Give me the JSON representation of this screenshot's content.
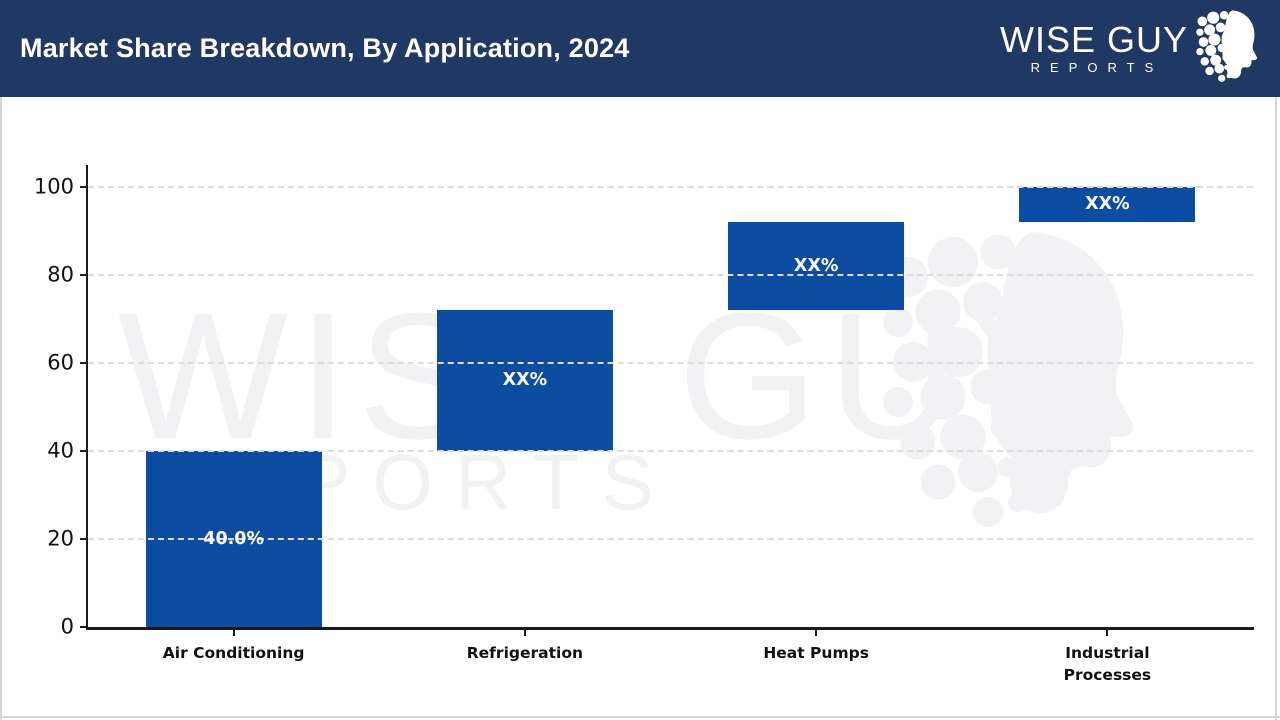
{
  "header": {
    "title": "Market Share Breakdown, By Application, 2024",
    "logo": {
      "line1": "WISE GUY",
      "line2": "REPORTS"
    }
  },
  "watermark": {
    "line1": "WISE GUY",
    "line2": "REPORTS"
  },
  "icons": {
    "logo_head": "wise-guy-head-icon",
    "watermark_head": "wise-guy-head-icon"
  },
  "colors": {
    "header_bg": "#1f3864",
    "bar": "#0d4da1",
    "bar_label": "#ffffff",
    "grid": "#dcdcdc",
    "axis": "#1a1a1a",
    "watermark": "#f2f2f4",
    "border": "#d4d4d4"
  },
  "chart_data": {
    "type": "bar",
    "variant": "waterfall",
    "title": "Market Share Breakdown, By Application, 2024",
    "categories": [
      "Air Conditioning",
      "Refrigeration",
      "Heat Pumps",
      "Industrial Processes"
    ],
    "tick_labels": [
      "Air Conditioning",
      "Refrigeration",
      "Heat Pumps",
      "Industrial\nProcesses"
    ],
    "segments": [
      {
        "label": "Air Conditioning",
        "start": 0,
        "end": 40,
        "value": 40,
        "value_label": "40.0%"
      },
      {
        "label": "Refrigeration",
        "start": 40,
        "end": 72,
        "value": 32,
        "value_label": "XX%"
      },
      {
        "label": "Heat Pumps",
        "start": 72,
        "end": 92,
        "value": 20,
        "value_label": "XX%"
      },
      {
        "label": "Industrial Processes",
        "start": 92,
        "end": 100,
        "value": 8,
        "value_label": "XX%"
      }
    ],
    "ylim": [
      0,
      100
    ],
    "yticks": [
      0,
      20,
      40,
      60,
      80,
      100
    ],
    "xlabel": "",
    "ylabel": "",
    "grid": "horizontal dashed, drawn above bars",
    "legend": "none"
  }
}
